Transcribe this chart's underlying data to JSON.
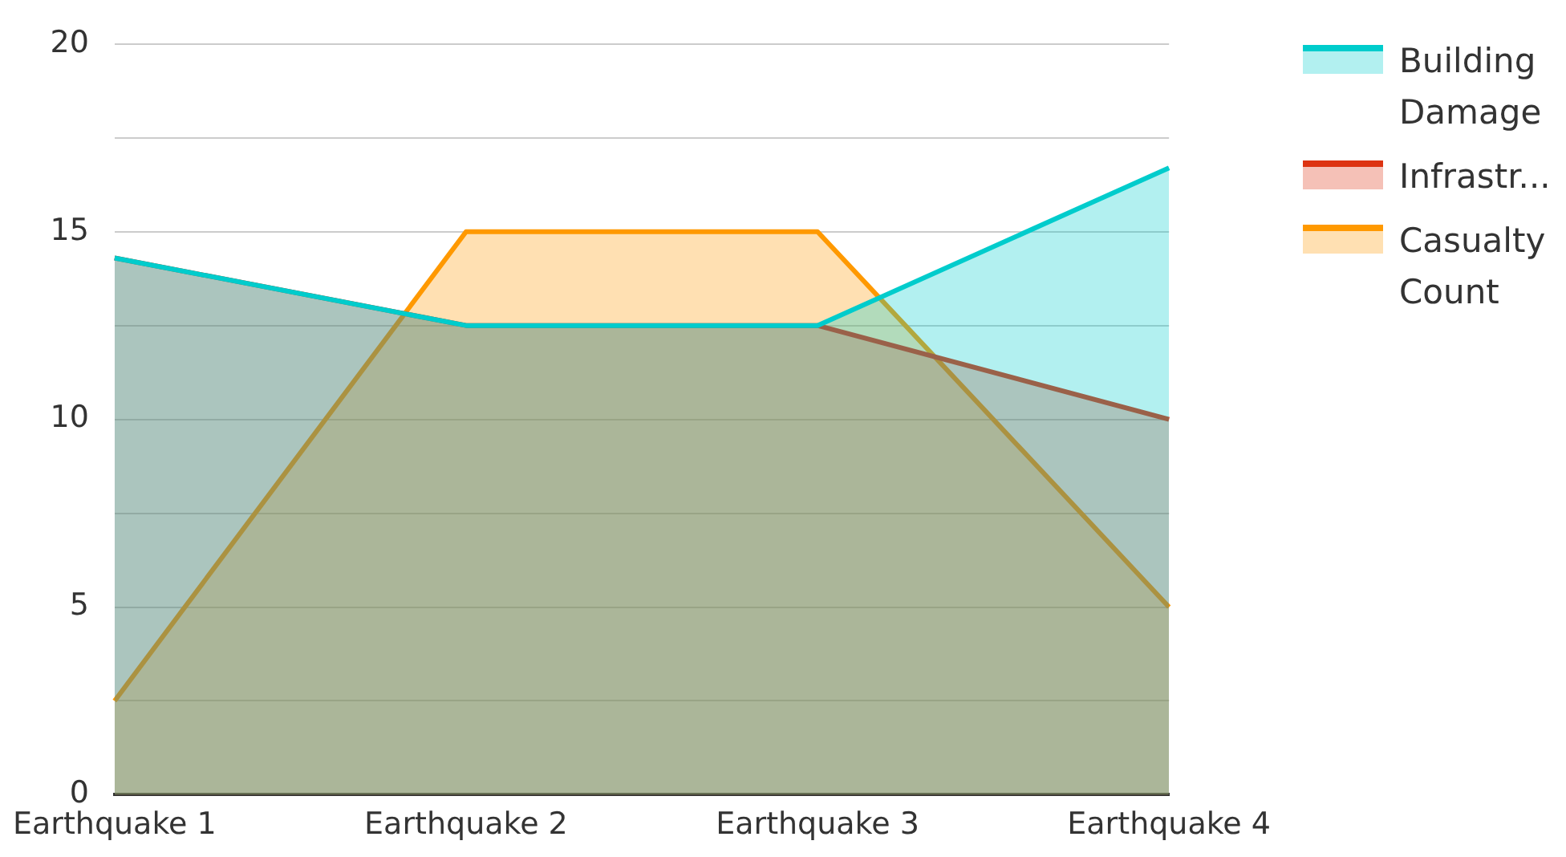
{
  "chart_data": {
    "type": "area",
    "categories": [
      "Earthquake 1",
      "Earthquake 2",
      "Earthquake 3",
      "Earthquake 4"
    ],
    "series": [
      {
        "name": "Building Damage",
        "color": "#00cccc",
        "values": [
          14.3,
          12.5,
          12.5,
          16.7
        ]
      },
      {
        "name": "Infrastr...",
        "color": "#dd3311",
        "values": [
          14.3,
          12.5,
          12.5,
          10
        ]
      },
      {
        "name": "Casualty Count",
        "color": "#ff9900",
        "values": [
          2.5,
          15,
          15,
          5
        ]
      }
    ],
    "ylim": [
      0,
      20
    ],
    "yticks": [
      0,
      {
        "value": 2.5,
        "label": null
      },
      5,
      {
        "value": 7.5,
        "label": null
      },
      10,
      {
        "value": 12.5,
        "label": null
      },
      15,
      {
        "value": 17.5,
        "label": null
      },
      20
    ],
    "grid": "y",
    "legend": "top right",
    "marker": "none",
    "line_style": "solid"
  }
}
